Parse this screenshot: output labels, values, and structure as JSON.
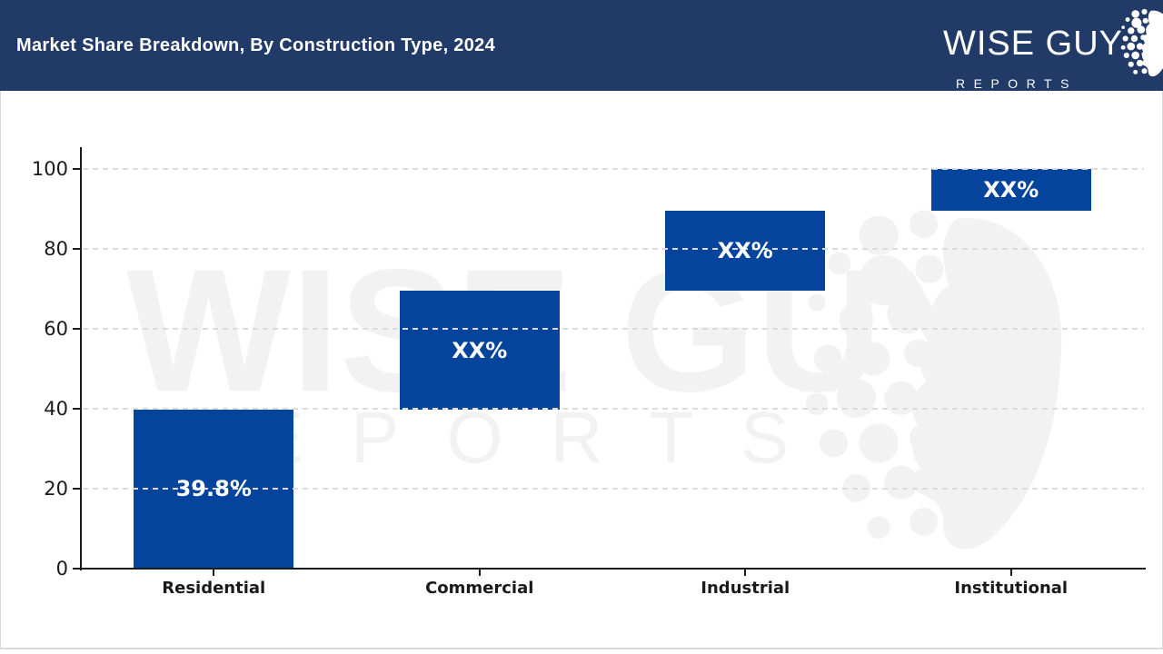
{
  "header": {
    "title": "Market Share Breakdown, By Construction Type, 2024",
    "logo": {
      "wordmark": "WISE GUY",
      "subtext": "REPORTS"
    }
  },
  "watermark": {
    "wordmark": "WISE GUY",
    "subtext": "REPORTS"
  },
  "colors": {
    "header_bg": "#223A68",
    "bar": "#05449C",
    "bar_label": "#FFFFFF",
    "axis": "#1A1A1A",
    "grid": "#DCDCDC",
    "watermark": "#F2F2F2",
    "category_label": "#1A1A1A"
  },
  "chart_data": {
    "type": "bar",
    "subtype": "waterfall",
    "title": "Market Share Breakdown, By Construction Type, 2024",
    "categories": [
      "Residential",
      "Commercial",
      "Industrial",
      "Institutional"
    ],
    "bars": [
      {
        "category": "Residential",
        "from": 0,
        "to": 39.8,
        "label": "39.8%"
      },
      {
        "category": "Commercial",
        "from": 39.8,
        "to": 69.5,
        "label": "XX%"
      },
      {
        "category": "Industrial",
        "from": 69.5,
        "to": 89.5,
        "label": "XX%"
      },
      {
        "category": "Institutional",
        "from": 89.5,
        "to": 100,
        "label": "XX%"
      }
    ],
    "ylim": [
      0,
      100
    ],
    "yticks": [
      0,
      20,
      40,
      60,
      80,
      100
    ],
    "grid": "horizontal-dashed",
    "legend": "none",
    "xlabel": "",
    "ylabel": ""
  }
}
